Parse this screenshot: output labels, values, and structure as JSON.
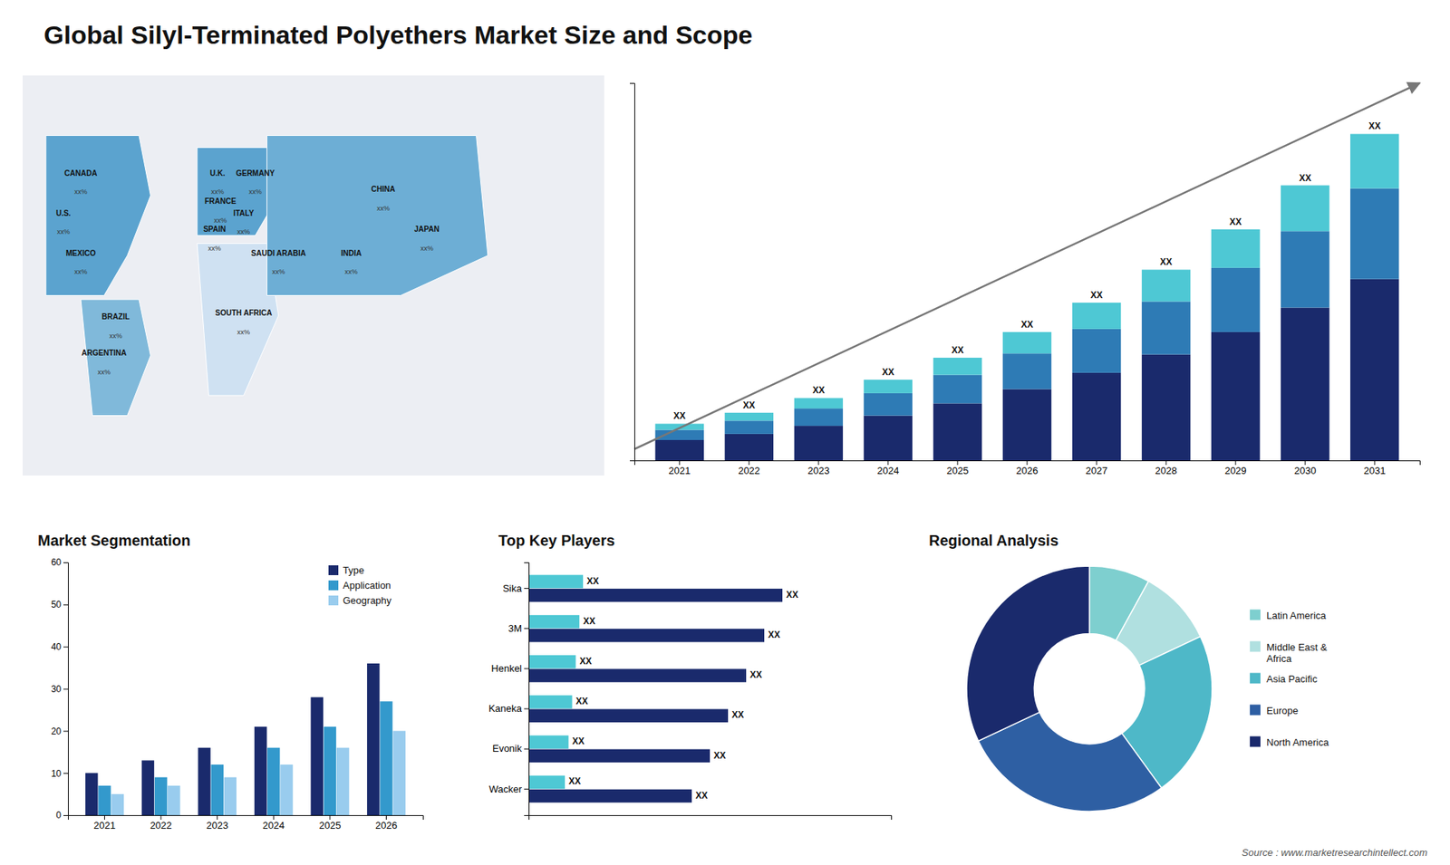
{
  "title": "Global Silyl-Terminated Polyethers Market Size and Scope",
  "annotations": [
    "Source : www.marketresearchintellect.com"
  ],
  "chart_data": [
    {
      "type": "bar",
      "stacked": true,
      "categories": [
        "2021",
        "2022",
        "2023",
        "2024",
        "2025",
        "2026",
        "2027",
        "2028",
        "2029",
        "2030",
        "2031"
      ],
      "series": [
        {
          "color": "#1a2a6c",
          "values": [
            1.0,
            1.3,
            1.7,
            2.2,
            2.8,
            3.5,
            4.3,
            5.2,
            6.3,
            7.5,
            8.9
          ]
        },
        {
          "color": "#2e7bb5",
          "values": [
            0.5,
            0.65,
            0.85,
            1.1,
            1.4,
            1.75,
            2.15,
            2.6,
            3.15,
            3.75,
            4.45
          ]
        },
        {
          "color": "#4ec8d4",
          "values": [
            0.3,
            0.39,
            0.51,
            0.66,
            0.84,
            1.05,
            1.29,
            1.56,
            1.89,
            2.25,
            2.67
          ]
        }
      ],
      "value_labels": [
        "XX",
        "XX",
        "XX",
        "XX",
        "XX",
        "XX",
        "XX",
        "XX",
        "XX",
        "XX",
        "XX"
      ],
      "ylim": [
        0,
        18.52
      ],
      "tick_labels": "x"
    },
    {
      "type": "bar",
      "title": "Market Segmentation",
      "categories": [
        "2021",
        "2022",
        "2023",
        "2024",
        "2025",
        "2026"
      ],
      "series": [
        {
          "name": "Type",
          "color": "#1a2a6c",
          "values": [
            10,
            13,
            16,
            21,
            28,
            36
          ]
        },
        {
          "name": "Application",
          "color": "#3399cc",
          "values": [
            7,
            9,
            12,
            16,
            21,
            27
          ]
        },
        {
          "name": "Geography",
          "color": "#99ccee",
          "values": [
            5,
            7,
            9,
            12,
            16,
            20
          ]
        }
      ],
      "ylim": [
        0,
        60
      ],
      "yticks": [
        0,
        10,
        20,
        30,
        40,
        50,
        60
      ],
      "legend": "upper right",
      "grid": false
    },
    {
      "type": "bar",
      "title": "Top Key Players",
      "orientation": "horizontal",
      "categories": [
        "Sika",
        "3M",
        "Henkel",
        "Kaneka",
        "Evonik",
        "Wacker"
      ],
      "series": [
        {
          "color": "#1a2a6c",
          "values": [
            0.7,
            0.65,
            0.6,
            0.55,
            0.5,
            0.45
          ],
          "value_labels": [
            "XX",
            "XX",
            "XX",
            "XX",
            "XX",
            "XX"
          ]
        },
        {
          "color": "#4ec8d4",
          "values": [
            0.15,
            0.14,
            0.13,
            0.12,
            0.11,
            0.1
          ],
          "value_labels": [
            "XX",
            "XX",
            "XX",
            "XX",
            "XX",
            "XX"
          ]
        }
      ],
      "xlim": [
        0,
        1.0
      ],
      "tick_labels": "y"
    },
    {
      "type": "pie",
      "title": "Regional Analysis",
      "categories": [
        "Latin America",
        "Middle East &\nAfrica",
        "Asia Pacific",
        "Europe",
        "North America"
      ],
      "values": [
        8,
        10,
        22,
        28,
        32
      ],
      "colors": [
        "#7ecfcf",
        "#b0e0e0",
        "#4eb8c8",
        "#2e5fa3",
        "#1a2a6c"
      ],
      "legend": "right"
    },
    {
      "type": "map",
      "categories": [
        "CANADA",
        "U.S.",
        "MEXICO",
        "BRAZIL",
        "ARGENTINA",
        "U.K.",
        "FRANCE",
        "SPAIN",
        "GERMANY",
        "ITALY",
        "SAUDI ARABIA",
        "SOUTH AFRICA",
        "CHINA",
        "JAPAN",
        "INDIA"
      ],
      "value_labels": [
        "xx%",
        "xx%",
        "xx%",
        "xx%",
        "xx%",
        "xx%",
        "xx%",
        "xx%",
        "xx%",
        "xx%",
        "xx%",
        "xx%",
        "xx%",
        "xx%",
        "xx%"
      ]
    }
  ]
}
